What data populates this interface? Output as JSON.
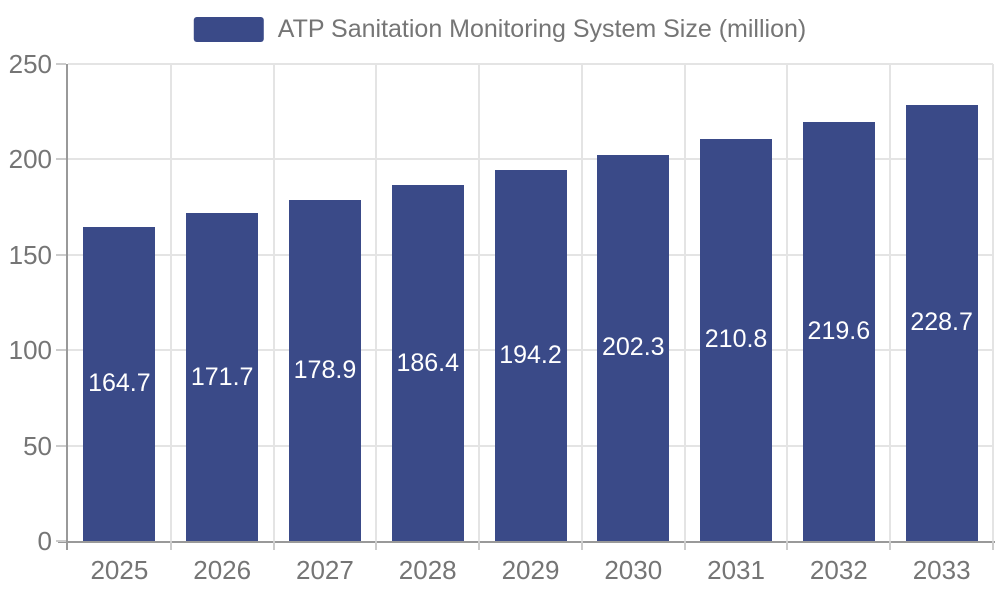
{
  "legend": {
    "label": "ATP Sanitation Monitoring System Size (million)"
  },
  "chart_data": {
    "type": "bar",
    "title": "ATP Sanitation Monitoring System Size (million)",
    "categories": [
      "2025",
      "2026",
      "2027",
      "2028",
      "2029",
      "2030",
      "2031",
      "2032",
      "2033"
    ],
    "values": [
      164.7,
      171.7,
      178.9,
      186.4,
      194.2,
      202.3,
      210.8,
      219.6,
      228.7
    ],
    "series_name": "ATP Sanitation Monitoring System Size (million)",
    "xlabel": "",
    "ylabel": "",
    "ylim": [
      0,
      250
    ],
    "yticks": [
      0,
      50,
      100,
      150,
      200,
      250
    ],
    "grid": true,
    "legend_position": "top-center",
    "value_label_position": "inside-center",
    "value_label_decimals": 1
  },
  "colors": {
    "bar": "#3A4A88",
    "bar_label": "#FFFFFF",
    "axis_text": "#757575",
    "legend_text": "#757575",
    "grid_line": "#E4E4E4",
    "axis_line": "#999999",
    "tick_line": "#CCCCCC",
    "background": "#FFFFFF"
  }
}
